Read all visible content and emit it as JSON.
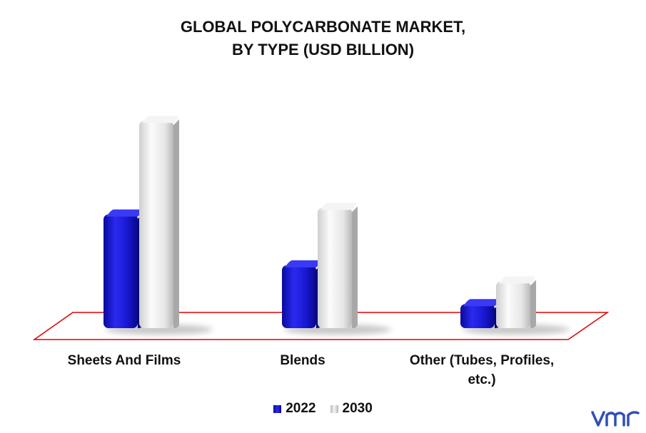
{
  "chart_data": {
    "type": "bar",
    "title": "GLOBAL POLYCARBONATE MARKET,\nBY TYPE (USD BILLION)",
    "title_lines": [
      "GLOBAL POLYCARBONATE MARKET,",
      "BY TYPE (USD BILLION)"
    ],
    "categories": [
      "Sheets And Films",
      "Blends",
      "Other (Tubes, Profiles, etc.)"
    ],
    "category_lines": [
      [
        "Sheets And Films"
      ],
      [
        "Blends"
      ],
      [
        "Other (Tubes, Profiles,",
        "etc.)"
      ]
    ],
    "series": [
      {
        "name": "2022",
        "values": [
          8.5,
          4.7,
          1.8
        ],
        "color": "#1a1adc"
      },
      {
        "name": "2030",
        "values": [
          15.5,
          9.0,
          3.5
        ],
        "color": "#e4e4e4"
      }
    ],
    "ylim": [
      0,
      16
    ],
    "grid": false,
    "legend_position": "bottom",
    "floor_outline_color": "#e00000",
    "has_3d_floor": true,
    "logo_text": "vmr"
  }
}
